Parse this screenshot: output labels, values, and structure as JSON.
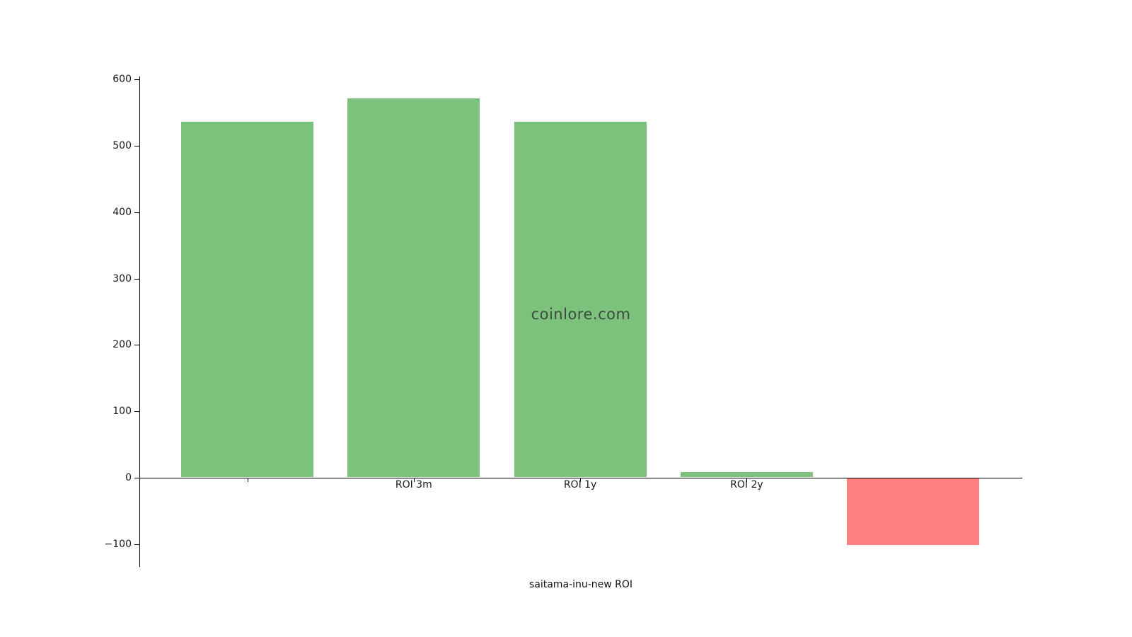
{
  "chart_data": {
    "type": "bar",
    "title": "saitama-inu-new ROI",
    "watermark": "coinlore.com",
    "categories": [
      "",
      "ROI 3m",
      "ROI 1y",
      "ROI 2y",
      ""
    ],
    "values": [
      535,
      570,
      535,
      7,
      -100
    ],
    "yticks": [
      600,
      500,
      400,
      300,
      200,
      100,
      0,
      -100
    ],
    "ylim": [
      -134,
      604
    ],
    "xlabel": "",
    "ylabel": "",
    "grid": false,
    "legend": false,
    "colors": {
      "positive_bar": "#7cc17c",
      "negative_bar": "#ff8080",
      "axis": "#000000",
      "tick_text": "#1a1a1a",
      "watermark_text": "#3d4a40"
    }
  }
}
